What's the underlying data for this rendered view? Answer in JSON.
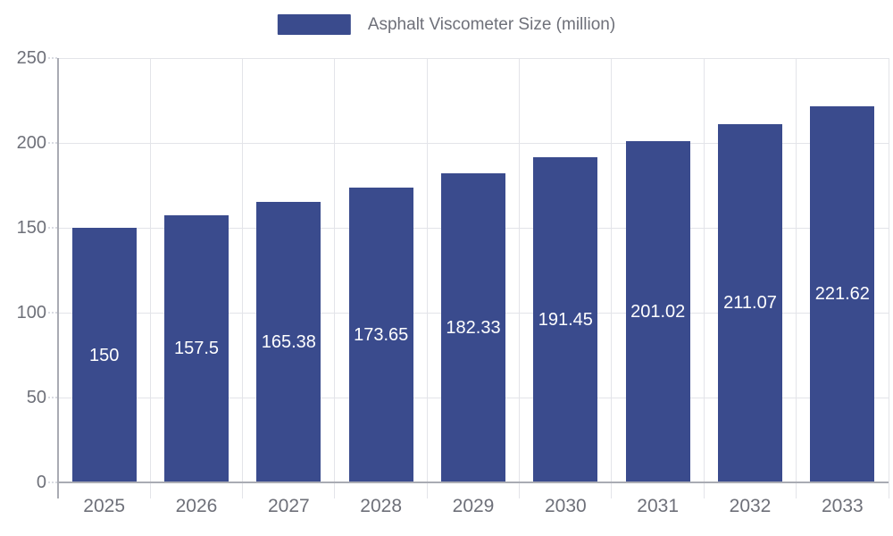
{
  "legend": {
    "label": "Asphalt Viscometer Size (million)",
    "position": "top-center"
  },
  "chart_data": {
    "type": "bar",
    "title": "Asphalt Viscometer Size (million)",
    "categories": [
      "2025",
      "2026",
      "2027",
      "2028",
      "2029",
      "2030",
      "2031",
      "2032",
      "2033"
    ],
    "values": [
      150,
      157.5,
      165.38,
      173.65,
      182.33,
      191.45,
      201.02,
      211.07,
      221.62
    ],
    "series_name": "Asphalt Viscometer Size (million)",
    "xlabel": "",
    "ylabel": "",
    "ylim": [
      0,
      250
    ],
    "yticks": [
      0,
      50,
      100,
      150,
      200,
      250
    ],
    "grid": true,
    "legend_position": "top-center",
    "bar_label_position": "inside-center",
    "colors": {
      "bar": "#3A4B8D",
      "bar_label": "#FFFFFF",
      "axis_text": "#6E7079",
      "axis_line": "#A9ABB3",
      "gridline": "#E3E4E9"
    }
  }
}
